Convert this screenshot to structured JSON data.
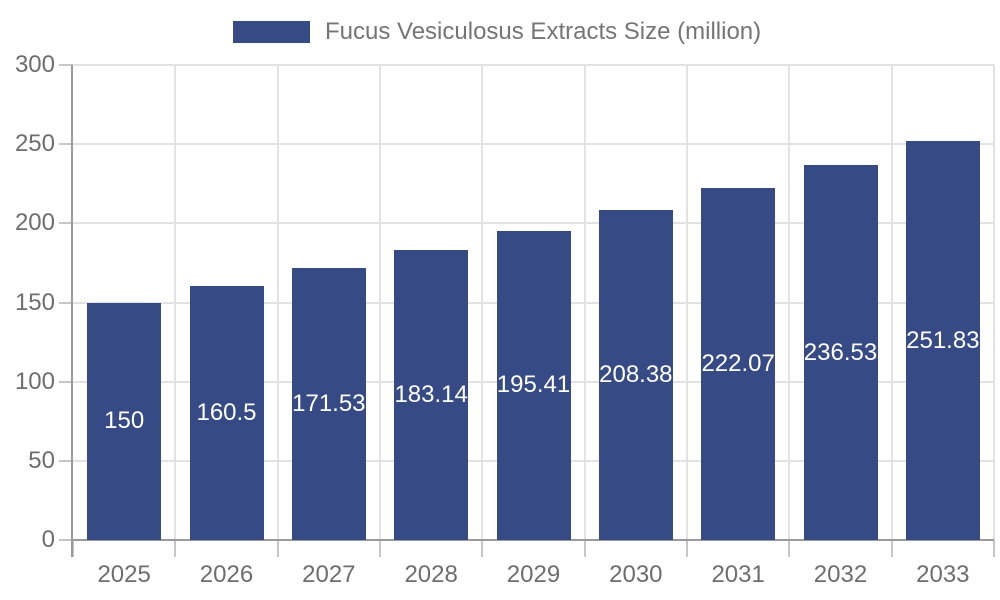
{
  "legend": {
    "label": "Fucus Vesiculosus Extracts Size (million)"
  },
  "chart_data": {
    "type": "bar",
    "title": "Fucus Vesiculosus Extracts Size (million)",
    "categories": [
      "2025",
      "2026",
      "2027",
      "2028",
      "2029",
      "2030",
      "2031",
      "2032",
      "2033"
    ],
    "series": [
      {
        "name": "Fucus Vesiculosus Extracts Size (million)",
        "values": [
          150,
          160.5,
          171.53,
          183.14,
          195.41,
          208.38,
          222.07,
          236.53,
          251.83
        ],
        "color": "#364a85"
      }
    ],
    "value_labels": [
      "150",
      "160.5",
      "171.53",
      "183.14",
      "195.41",
      "208.38",
      "222.07",
      "236.53",
      "251.83"
    ],
    "xlabel": "",
    "ylabel": "",
    "ylim": [
      0,
      300
    ],
    "yticks": [
      0,
      50,
      100,
      150,
      200,
      250,
      300
    ],
    "grid": true,
    "legend_position": "top",
    "colors": {
      "bar": "#364a85",
      "grid_line": "#e2e2e2",
      "axis_line": "#9a9a9a",
      "tick_line": "#c6c6c6",
      "axis_label": "#6e6e6e",
      "legend_text": "#757575",
      "value_label": "#ffffff",
      "background": "#ffffff"
    }
  }
}
